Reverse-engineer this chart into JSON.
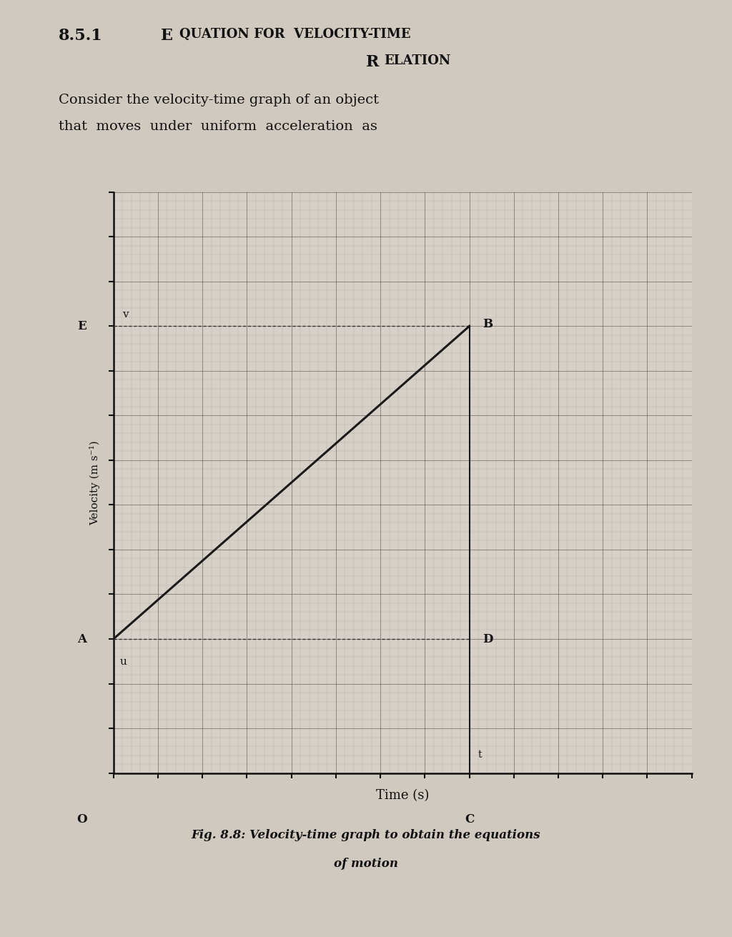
{
  "title_line1": "8.5.1  EQUATION FOR VELOCITY-TIME",
  "title_line2": "RELATION",
  "body_line1": "Consider the velocity-time graph of an object",
  "body_line2": "that  moves  under  uniform  acceleration  as",
  "xlabel": "Time (s)",
  "ylabel": "Velocity (m s⁻¹)",
  "fig_caption_line1": "Fig. 8.8: Velocity-time graph to obtain the equations",
  "fig_caption_line2": "of motion",
  "bg_color": "#cfc9c0",
  "paper_color": "#d6d0c8",
  "grid_minor_color": "#888880",
  "grid_major_color": "#555550",
  "line_color": "#1a1a1a",
  "dashed_color": "#333333",
  "point_A": [
    0.0,
    3.0
  ],
  "point_B": [
    8.0,
    10.0
  ],
  "point_C_x": 8.0,
  "point_D": [
    8.0,
    3.0
  ],
  "point_E_y": 10.0,
  "xlim": [
    0,
    13
  ],
  "ylim": [
    0,
    13
  ],
  "label_u": "u",
  "label_v": "v",
  "label_A": "A",
  "label_B": "B",
  "label_C": "C",
  "label_D": "D",
  "label_E": "E",
  "label_t": "t",
  "label_O": "O"
}
